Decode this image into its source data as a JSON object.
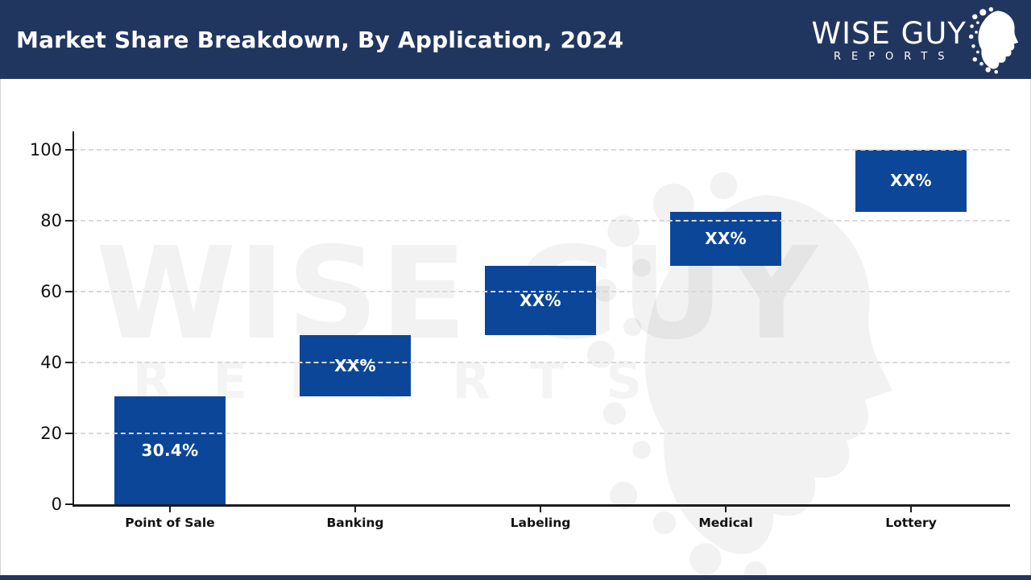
{
  "header": {
    "title": "Market Share Breakdown, By Application, 2024",
    "logo": {
      "line1": "WISE GUY",
      "line2": "REPORTS",
      "face_icon": "dotted-head-profile"
    }
  },
  "watermark": {
    "line1": "WISE GUY",
    "line2": "REPORTS"
  },
  "colors": {
    "header_bg": "#21365f",
    "bar_fill": "#0b4699",
    "bar_label_text": "#ffffff",
    "axis": "#1c1c1c",
    "gridline": "#d9d9d9",
    "title_text": "#ffffff",
    "body_bg": "#ffffff",
    "footer_bar": "#21365f"
  },
  "chart_data": {
    "type": "bar",
    "subtype": "waterfall-floating-segments",
    "title": "Market Share Breakdown, By Application, 2024",
    "categories": [
      "Point of Sale",
      "Banking",
      "Labeling",
      "Medical",
      "Lottery"
    ],
    "segments": [
      {
        "category": "Point of Sale",
        "start": 0,
        "end": 30.4,
        "label": "30.4%"
      },
      {
        "category": "Banking",
        "start": 30.4,
        "end": 47.8,
        "label": "XX%"
      },
      {
        "category": "Labeling",
        "start": 47.8,
        "end": 67.3,
        "label": "XX%"
      },
      {
        "category": "Medical",
        "start": 67.3,
        "end": 82.6,
        "label": "XX%"
      },
      {
        "category": "Lottery",
        "start": 82.6,
        "end": 100,
        "label": "XX%"
      }
    ],
    "xlabel": "",
    "ylabel": "",
    "ylim": [
      0,
      100
    ],
    "yticks": [
      0,
      20,
      40,
      60,
      80,
      100
    ],
    "grid": "horizontal-dashed-above-bars",
    "legend": "none"
  }
}
